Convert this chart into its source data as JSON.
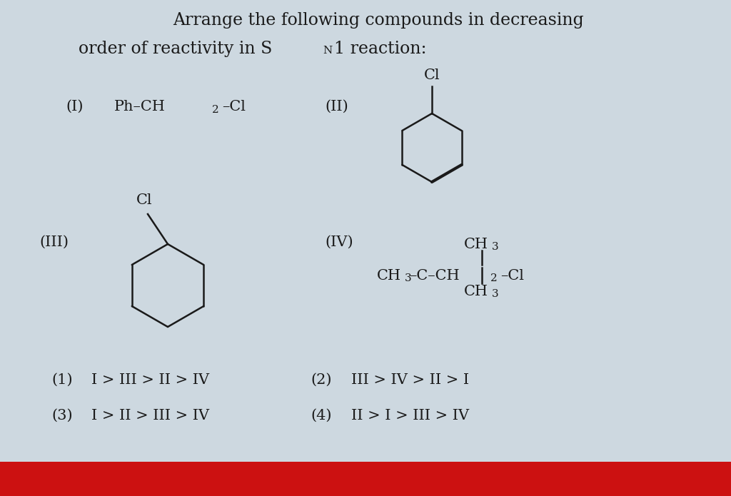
{
  "background_color": "#cdd8e0",
  "text_color": "#1a1a1a",
  "red_bar_color": "#cc1111",
  "title_line1": "Arrange the following compounds in decreasing",
  "title_line2_pre": "order of reactivity in S",
  "title_line2_sub": "N",
  "title_line2_post": "1 reaction:",
  "figsize": [
    10.24,
    6.95
  ],
  "dpi": 100,
  "font_size_title": 17,
  "font_size_label": 15,
  "font_size_struct": 15,
  "font_size_sub": 11
}
